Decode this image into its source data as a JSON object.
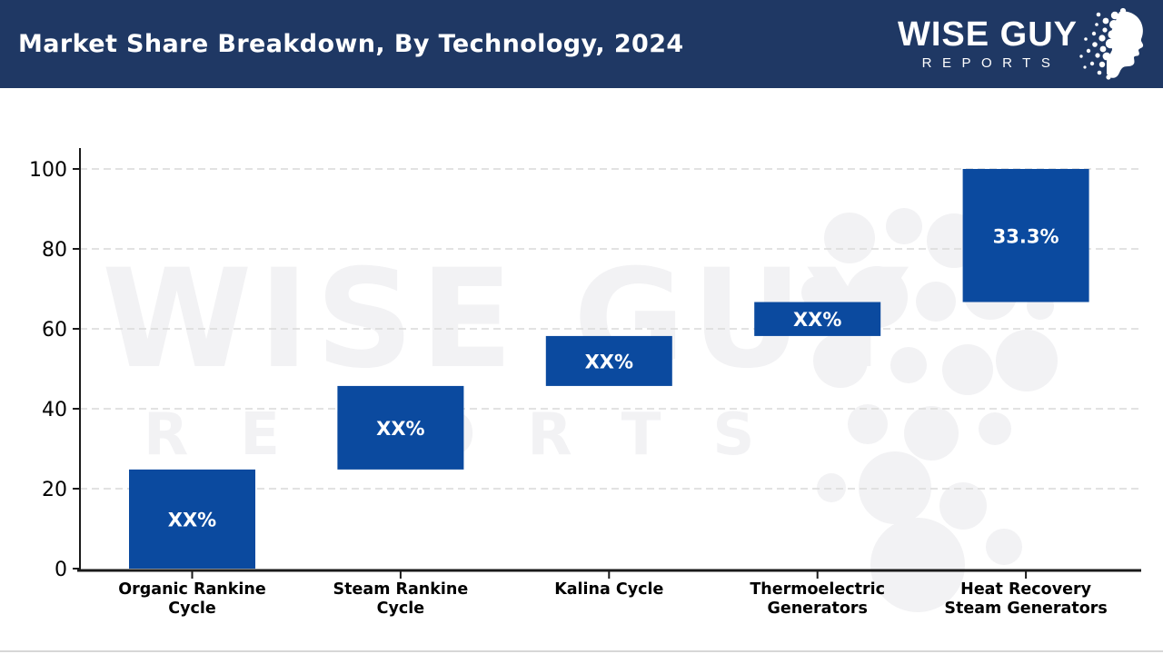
{
  "header": {
    "title": "Market Share Breakdown, By Technology, 2024",
    "bg_color": "#1f3864",
    "logo": {
      "line1": "WISE GUY",
      "line2": "REPORTS"
    }
  },
  "watermark": {
    "line1": "WISE GUY",
    "line2": "REPORTS"
  },
  "chart_data": {
    "type": "bar",
    "subtype": "waterfall",
    "title": "Market Share Breakdown, By Technology, 2024",
    "xlabel": "",
    "ylabel": "",
    "ylim": [
      0,
      105
    ],
    "y_ticks": [
      0,
      20,
      40,
      60,
      80,
      100
    ],
    "grid": "horizontal-dashed",
    "legend": "none",
    "bar_color": "#0b4a9f",
    "label_color": "#ffffff",
    "categories": [
      "Organic Rankine Cycle",
      "Steam Rankine Cycle",
      "Kalina Cycle",
      "Thermoelectric Generators",
      "Heat Recovery Steam Generators"
    ],
    "category_lines": [
      [
        "Organic Rankine",
        "Cycle"
      ],
      [
        "Steam Rankine",
        "Cycle"
      ],
      [
        "Kalina Cycle"
      ],
      [
        "Thermoelectric",
        "Generators"
      ],
      [
        "Heat Recovery",
        "Steam Generators"
      ]
    ],
    "bars": [
      {
        "category": "Organic Rankine Cycle",
        "start": 0,
        "end": 24.8,
        "value": 24.8,
        "label": "XX%"
      },
      {
        "category": "Steam Rankine Cycle",
        "start": 24.8,
        "end": 45.7,
        "value": 20.9,
        "label": "XX%"
      },
      {
        "category": "Kalina Cycle",
        "start": 45.7,
        "end": 58.2,
        "value": 12.5,
        "label": "XX%"
      },
      {
        "category": "Thermoelectric Generators",
        "start": 58.2,
        "end": 66.7,
        "value": 8.5,
        "label": "XX%"
      },
      {
        "category": "Heat Recovery Steam Generators",
        "start": 66.7,
        "end": 100,
        "value": 33.3,
        "label": "33.3%"
      }
    ]
  }
}
